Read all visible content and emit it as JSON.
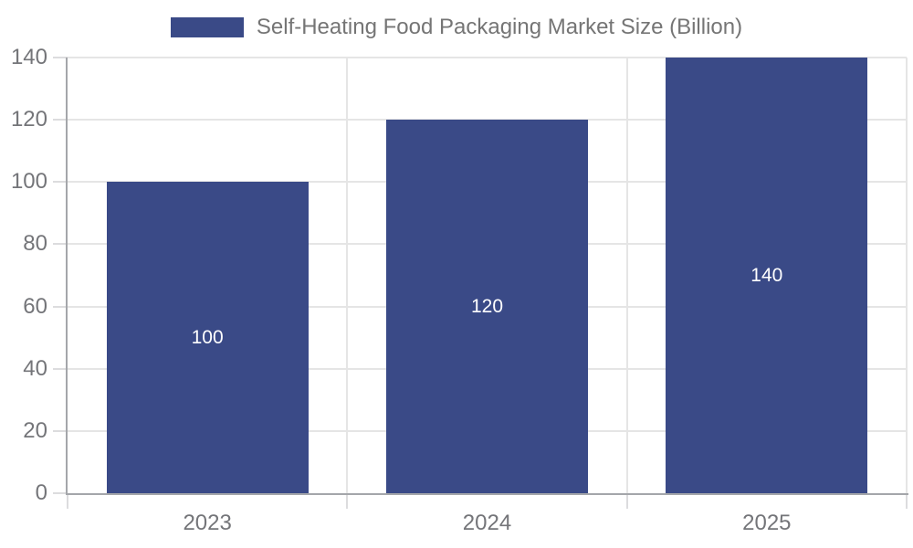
{
  "legend": {
    "label": "Self-Heating Food Packaging Market Size (Billion)"
  },
  "chart_data": {
    "type": "bar",
    "title": "Self-Heating Food Packaging Market Size (Billion)",
    "categories": [
      "2023",
      "2024",
      "2025"
    ],
    "values": [
      100,
      120,
      140
    ],
    "data_labels": [
      "100",
      "120",
      "140"
    ],
    "xlabel": "",
    "ylabel": "",
    "ylim": [
      0,
      140
    ],
    "yticks": [
      0,
      20,
      40,
      60,
      80,
      100,
      120,
      140
    ],
    "grid": true,
    "legend_position": "top-center"
  },
  "colors": {
    "bar": "#3a4a87",
    "bar_label_text": "#ffffff",
    "grid_line": "#e5e5e5",
    "tick_mark": "#dcdcde",
    "axis_line": "#a4a6aa",
    "axis_text": "#747579",
    "legend_text": "#757575",
    "background": "#ffffff"
  }
}
